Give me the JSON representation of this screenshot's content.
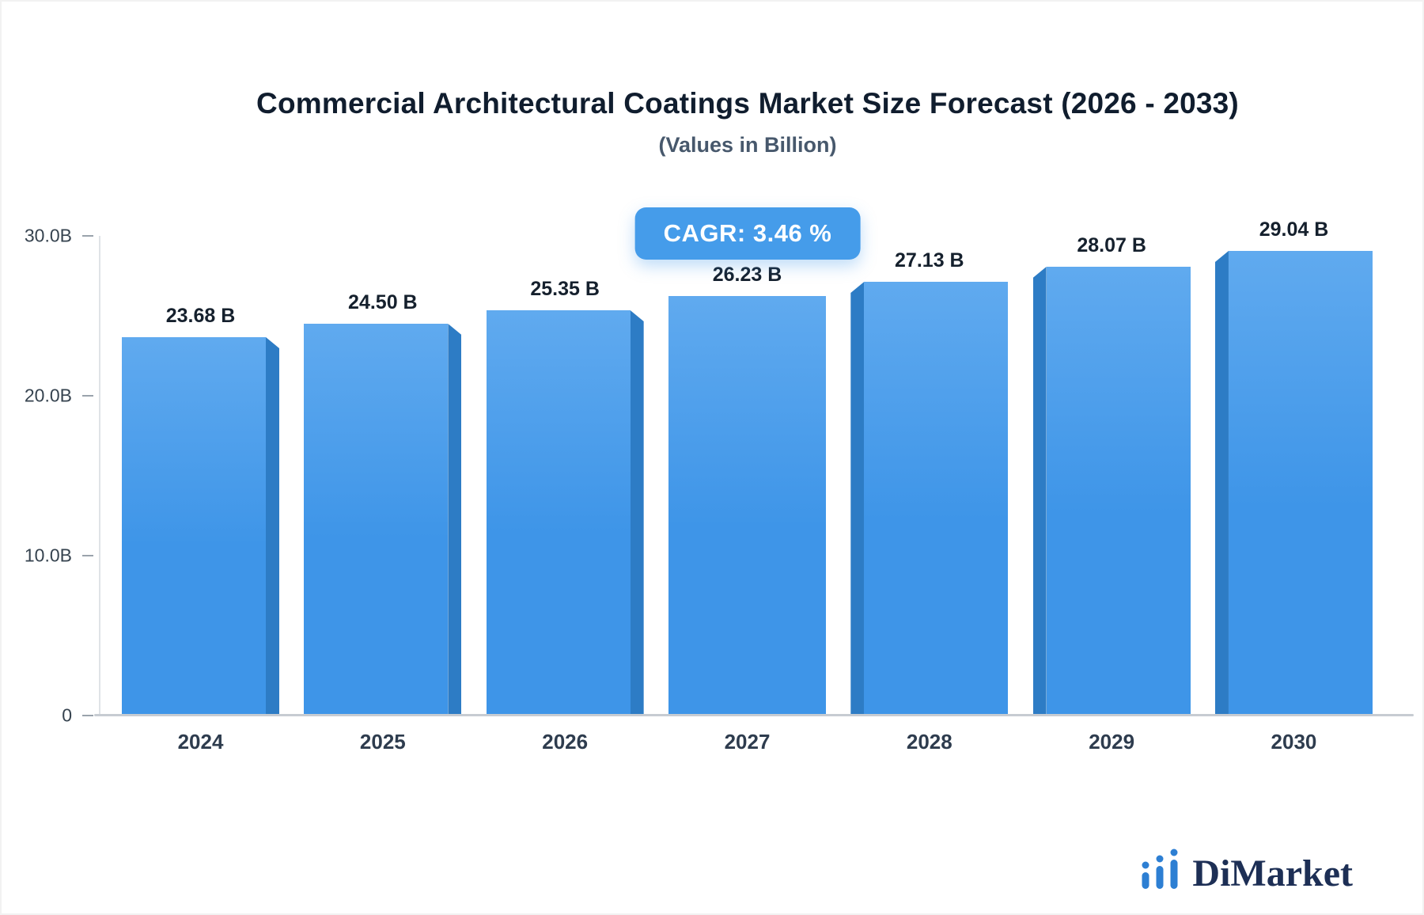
{
  "chart_data": {
    "type": "bar",
    "title": "Commercial Architectural Coatings Market Size Forecast (2026 - 2033)",
    "subtitle": "(Values in Billion)",
    "cagr_label": "CAGR: 3.46 %",
    "categories": [
      "2024",
      "2025",
      "2026",
      "2027",
      "2028",
      "2029",
      "2030"
    ],
    "values": [
      23.68,
      24.5,
      25.35,
      26.23,
      27.13,
      28.07,
      29.04
    ],
    "value_labels": [
      "23.68 B",
      "24.50 B",
      "25.35 B",
      "26.23 B",
      "27.13 B",
      "28.07 B",
      "29.04 B"
    ],
    "xlabel": "",
    "ylabel": "",
    "ylim": [
      0,
      30
    ],
    "yticks": [
      0,
      10,
      20,
      30
    ],
    "ytick_labels": [
      "0",
      "10.0B",
      "20.0B",
      "30.0B"
    ],
    "grid": false,
    "legend": "none"
  },
  "footer": {
    "brand": "DiMarket"
  },
  "colors": {
    "title": "#101d2e",
    "subtitle": "#47586c",
    "badge_bg": "#459cea",
    "badge_text": "#ffffff",
    "bar_top": "#60aaef",
    "bar_main": "#3e95e8",
    "bar_side": "#2d7cc5",
    "value_text": "#15202d",
    "axis_text": "#36434f",
    "baseline": "#c7ccd2",
    "brand_text": "#1d2f55",
    "brand_icon": "#2d7fd3"
  }
}
